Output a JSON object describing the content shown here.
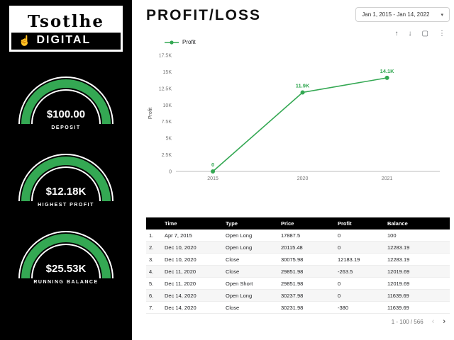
{
  "accent_color": "#34a853",
  "sidebar": {
    "logo": {
      "title": "Tsotlhe",
      "subtitle": "DIGITAL"
    },
    "gauges": [
      {
        "value": "$100.00",
        "label": "DEPOSIT"
      },
      {
        "value": "$12.18K",
        "label": "HIGHEST PROFIT"
      },
      {
        "value": "$25.53K",
        "label": "RUNNING BALANCE"
      }
    ]
  },
  "header": {
    "title": "PROFIT/LOSS",
    "date_range": {
      "value": "Jan 1, 2015 - Jan 14, 2022",
      "caret": "▾"
    }
  },
  "toolbar": {
    "icons": [
      {
        "name": "arrow-up-icon",
        "glyph": "↑"
      },
      {
        "name": "arrow-down-icon",
        "glyph": "↓"
      },
      {
        "name": "fullscreen-icon",
        "glyph": "▢"
      },
      {
        "name": "more-vert-icon",
        "glyph": "⋮"
      }
    ]
  },
  "chart_data": {
    "type": "line",
    "title": "",
    "ylabel": "Profit",
    "legend": [
      {
        "label": "Profit",
        "color": "#34a853"
      }
    ],
    "legend_position": "top-left",
    "grid": false,
    "x_categories": [
      "2015",
      "2020",
      "2021"
    ],
    "series": [
      {
        "name": "Profit",
        "color": "#34a853",
        "values": [
          0,
          11900,
          14100
        ],
        "point_labels": [
          "0",
          "11.9K",
          "14.1K"
        ]
      }
    ],
    "y_ticks": [
      {
        "v": 0,
        "label": "0"
      },
      {
        "v": 2500,
        "label": "2.5K"
      },
      {
        "v": 5000,
        "label": "5K"
      },
      {
        "v": 7500,
        "label": "7.5K"
      },
      {
        "v": 10000,
        "label": "10K"
      },
      {
        "v": 12500,
        "label": "12.5K"
      },
      {
        "v": 15000,
        "label": "15K"
      },
      {
        "v": 17500,
        "label": "17.5K"
      }
    ],
    "ylim": [
      0,
      17500
    ]
  },
  "table": {
    "columns": [
      "Time",
      "Type",
      "Price",
      "Profit",
      "Balance"
    ],
    "rows": [
      {
        "num": "1.",
        "time": "Apr 7, 2015",
        "type": "Open Long",
        "price": "17887.5",
        "profit": "0",
        "balance": "100"
      },
      {
        "num": "2.",
        "time": "Dec 10, 2020",
        "type": "Open Long",
        "price": "20115.48",
        "profit": "0",
        "balance": "12283.19"
      },
      {
        "num": "3.",
        "time": "Dec 10, 2020",
        "type": "Close",
        "price": "30075.98",
        "profit": "12183.19",
        "balance": "12283.19"
      },
      {
        "num": "4.",
        "time": "Dec 11, 2020",
        "type": "Close",
        "price": "29851.98",
        "profit": "-263.5",
        "balance": "12019.69"
      },
      {
        "num": "5.",
        "time": "Dec 11, 2020",
        "type": "Open Short",
        "price": "29851.98",
        "profit": "0",
        "balance": "12019.69"
      },
      {
        "num": "6.",
        "time": "Dec 14, 2020",
        "type": "Open Long",
        "price": "30237.98",
        "profit": "0",
        "balance": "11639.69"
      },
      {
        "num": "7.",
        "time": "Dec 14, 2020",
        "type": "Close",
        "price": "30231.98",
        "profit": "-380",
        "balance": "11639.69"
      }
    ],
    "pagination": {
      "text": "1 - 100 / 566",
      "prev": "‹",
      "next": "›"
    }
  }
}
